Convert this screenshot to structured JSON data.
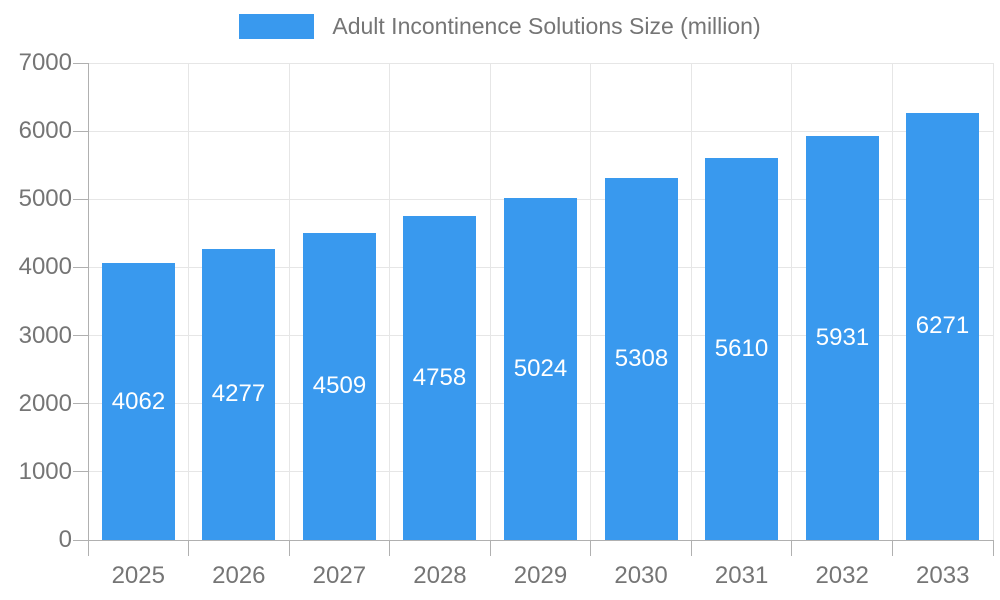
{
  "legend": {
    "label": "Adult Incontinence Solutions Size (million)"
  },
  "colors": {
    "bar": "#3999ee",
    "axis_text": "#757575",
    "bar_label_text": "#ffffff",
    "gridline": "#e6e6e6",
    "axis_line": "#b0b0b0"
  },
  "chart_data": {
    "type": "bar",
    "title": "Adult Incontinence Solutions Size (million)",
    "categories": [
      "2025",
      "2026",
      "2027",
      "2028",
      "2029",
      "2030",
      "2031",
      "2032",
      "2033"
    ],
    "values": [
      4062,
      4277,
      4509,
      4758,
      5024,
      5308,
      5610,
      5931,
      6271
    ],
    "xlabel": "",
    "ylabel": "",
    "ylim": [
      0,
      7000
    ],
    "ytick_step": 1000,
    "yticks": [
      0,
      1000,
      2000,
      3000,
      4000,
      5000,
      6000,
      7000
    ],
    "grid": true,
    "legend_position": "top-center",
    "bar_value_labels": "inside-center"
  }
}
